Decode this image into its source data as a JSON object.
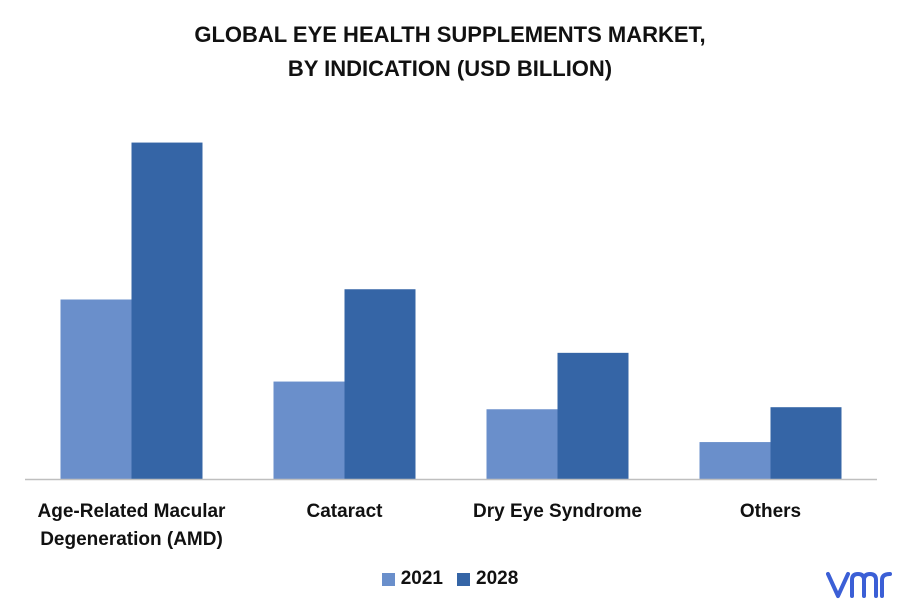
{
  "chart_data": {
    "type": "bar",
    "title_lines": [
      "GLOBAL EYE HEALTH SUPPLEMENTS MARKET,",
      "BY INDICATION (USD BILLION)"
    ],
    "categories": [
      "Age-Related Macular Degeneration (AMD)",
      "Cataract",
      "Dry Eye Syndrome",
      "Others"
    ],
    "category_label_lines": [
      [
        "Age-Related Macular",
        "Degeneration (AMD)"
      ],
      [
        "Cataract"
      ],
      [
        "Dry Eye Syndrome"
      ],
      [
        "Others"
      ]
    ],
    "series": [
      {
        "name": "2021",
        "values": [
          1.75,
          0.95,
          0.68,
          0.36
        ],
        "color": "#6a8fcb"
      },
      {
        "name": "2028",
        "values": [
          3.28,
          1.85,
          1.23,
          0.7
        ],
        "color": "#3565a6"
      }
    ],
    "ylim": [
      0,
      3.5
    ],
    "grid": false,
    "legend_position": "bottom-center",
    "axis_color": "#bfbfbf"
  },
  "logo_text": "vmr",
  "logo_color": "#3b5fd6"
}
